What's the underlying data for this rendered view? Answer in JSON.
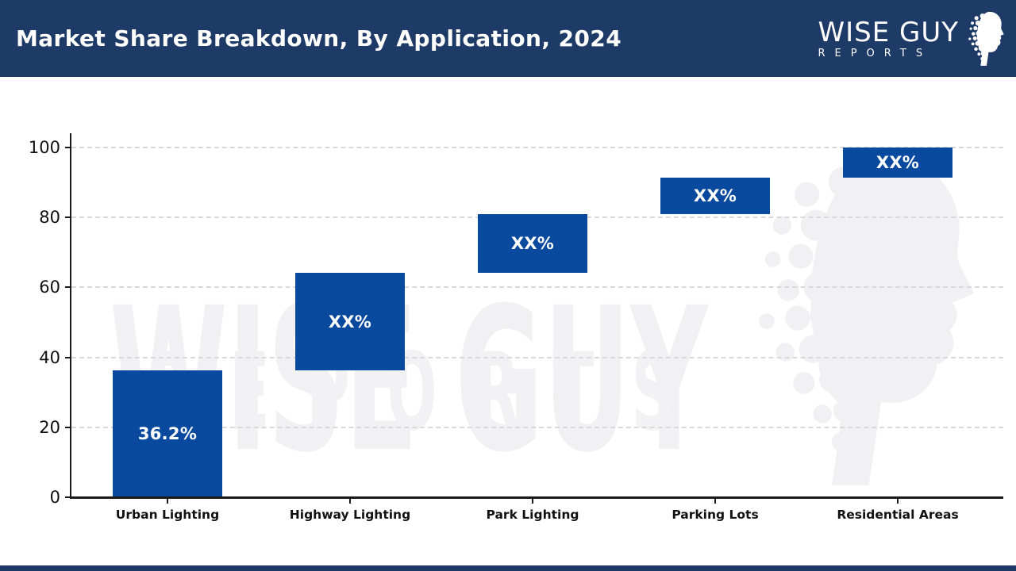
{
  "header": {
    "title": "Market Share Breakdown, By Application, 2024",
    "background_color": "#1e3a66",
    "logo": {
      "line1": "WISE GUY",
      "line2": "REPORTS",
      "face_icon": "dotted-head-profile-icon",
      "color": "#ffffff"
    }
  },
  "watermark": {
    "line1": "WISE GUY",
    "line2": "REPORTS",
    "face_icon": "dotted-head-profile-icon",
    "color": "#f1f1f3"
  },
  "footer": {
    "background_color": "#1e3a66"
  },
  "chart_data": {
    "type": "bar",
    "subtype": "floating-waterfall",
    "title": "Market Share Breakdown, By Application, 2024",
    "categories": [
      "Urban Lighting",
      "Highway Lighting",
      "Park Lighting",
      "Parking Lots",
      "Residential Areas"
    ],
    "segments": [
      {
        "start": 0,
        "end": 36.2,
        "label": "36.2%"
      },
      {
        "start": 36.2,
        "end": 64.1,
        "label": "XX%"
      },
      {
        "start": 64.1,
        "end": 81.0,
        "label": "XX%"
      },
      {
        "start": 81.0,
        "end": 91.3,
        "label": "XX%"
      },
      {
        "start": 91.3,
        "end": 100.0,
        "label": "XX%"
      }
    ],
    "yticks": [
      0,
      20,
      40,
      60,
      80,
      100
    ],
    "ylim": [
      0,
      104
    ],
    "xlabel": "",
    "ylabel": "",
    "legend": "none",
    "grid": "horizontal-dashed",
    "bar_color": "#0a4a9e",
    "bar_label_color": "#ffffff",
    "axis_color": "#1a1a1a",
    "gridline_color": "#d9d9d9"
  }
}
